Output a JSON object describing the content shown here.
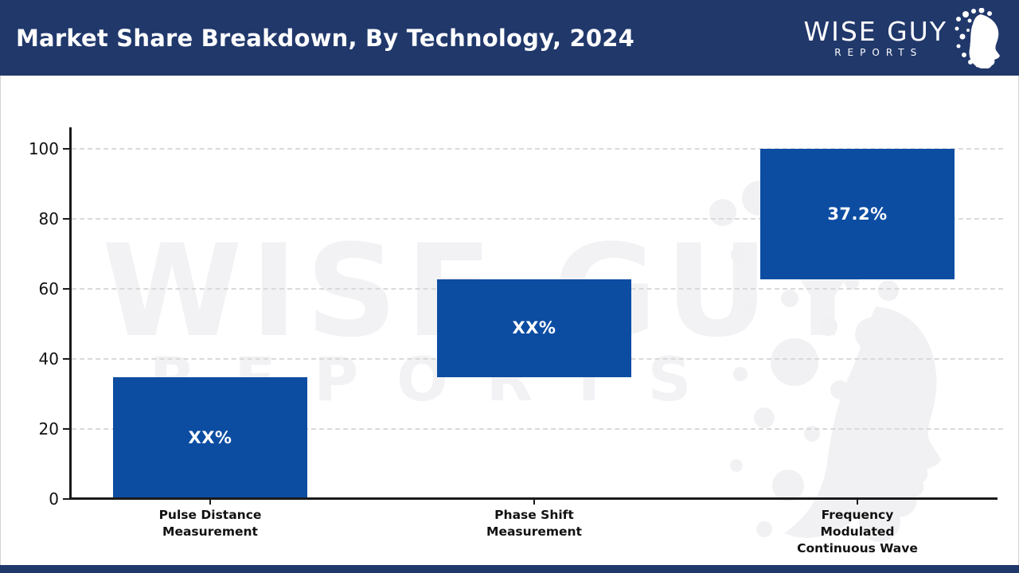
{
  "header": {
    "title": "Market Share Breakdown, By Technology, 2024",
    "bg_color": "#21386b",
    "logo": {
      "main": "WISE GUY",
      "sub": "REPORTS"
    }
  },
  "watermark": {
    "line1": "WISE GUY",
    "line2": "REPORTS"
  },
  "footer": {
    "bg_color": "#21386b"
  },
  "chart_data": {
    "type": "bar",
    "subtype": "waterfall",
    "title": "Market Share Breakdown, By Technology, 2024",
    "categories": [
      "Pulse Distance Measurement",
      "Phase Shift Measurement",
      "Frequency Modulated Continuous Wave"
    ],
    "categories_lines": [
      [
        "Pulse Distance",
        "Measurement"
      ],
      [
        "Phase Shift",
        "Measurement"
      ],
      [
        "Frequency",
        "Modulated",
        "Continuous Wave"
      ]
    ],
    "bars": [
      {
        "start": 0,
        "end": 34.8,
        "value": "XX",
        "display_label": "XX%"
      },
      {
        "start": 34.8,
        "end": 62.8,
        "value": "XX",
        "display_label": "XX%"
      },
      {
        "start": 62.8,
        "end": 100,
        "value": "37.2",
        "display_label": "37.2%"
      }
    ],
    "yticks": [
      0,
      20,
      40,
      60,
      80,
      100
    ],
    "ylim": [
      0,
      105.5
    ],
    "xlabel": "",
    "ylabel": "",
    "bar_color": "#0c4da2",
    "grid": "horizontal-dashed",
    "gridline_color": "#d9d9d9",
    "legend": "none"
  }
}
